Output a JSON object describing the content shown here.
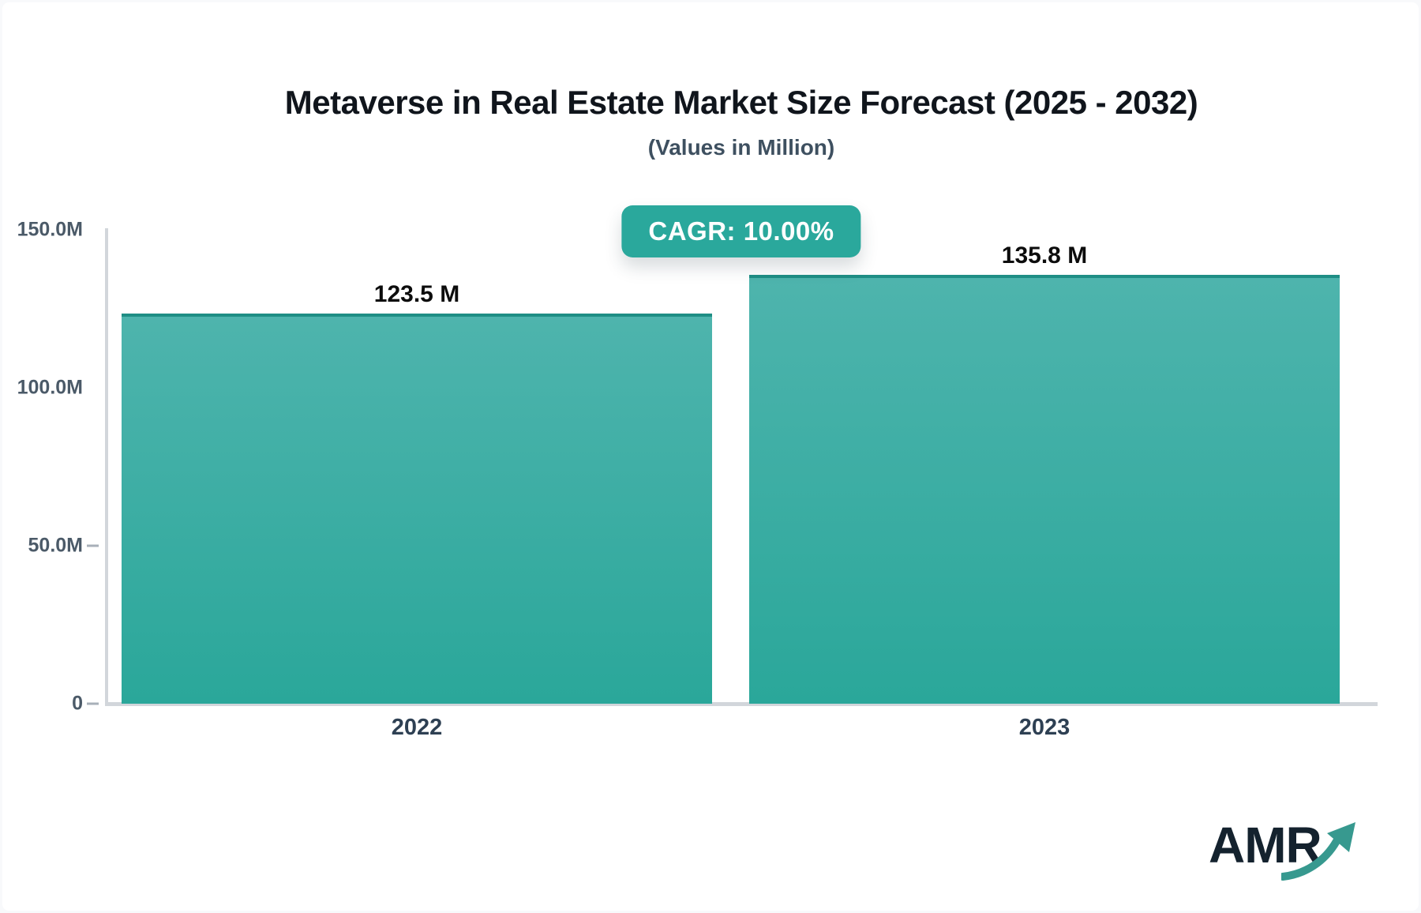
{
  "header": {
    "title": "Metaverse in Real Estate Market Size Forecast (2025 - 2032)",
    "subtitle": "(Values in Million)",
    "cagr_badge": "CAGR: 10.00%"
  },
  "chart_data": {
    "type": "bar",
    "title": "Metaverse in Real Estate Market Size Forecast (2025 - 2032)",
    "subtitle": "(Values in Million)",
    "cagr": "10.00%",
    "categories": [
      "2022",
      "2023"
    ],
    "values": [
      123.5,
      135.8
    ],
    "value_labels": [
      "123.5 M",
      "135.8 M"
    ],
    "ylim": [
      0,
      150
    ],
    "yticks": [
      {
        "value": 150,
        "label": "150.0M",
        "dash": false
      },
      {
        "value": 100,
        "label": "100.0M",
        "dash": false
      },
      {
        "value": 50,
        "label": "50.0M",
        "dash": true
      },
      {
        "value": 0,
        "label": "0",
        "dash": true
      }
    ],
    "grid": false,
    "legend": false
  },
  "colors": {
    "accent_teal": "#2aa89c",
    "bar_gradient_top": "#4eb4ad",
    "bar_gradient_bottom": "#2aa79a",
    "bar_top_border": "#1f8e85",
    "axis_line": "#d2d6db",
    "ytick_text": "#4b5a68",
    "xlabel_text": "#2e4053",
    "title_text": "#10151c",
    "subtitle_text": "#3e5060",
    "badge_background": "#2aa89c",
    "badge_text": "#ffffff",
    "logo_text": "#14222e",
    "logo_arrow": "#37998f"
  },
  "logo": {
    "text": "AMR",
    "arrow_icon": "trend-up-arrow"
  }
}
